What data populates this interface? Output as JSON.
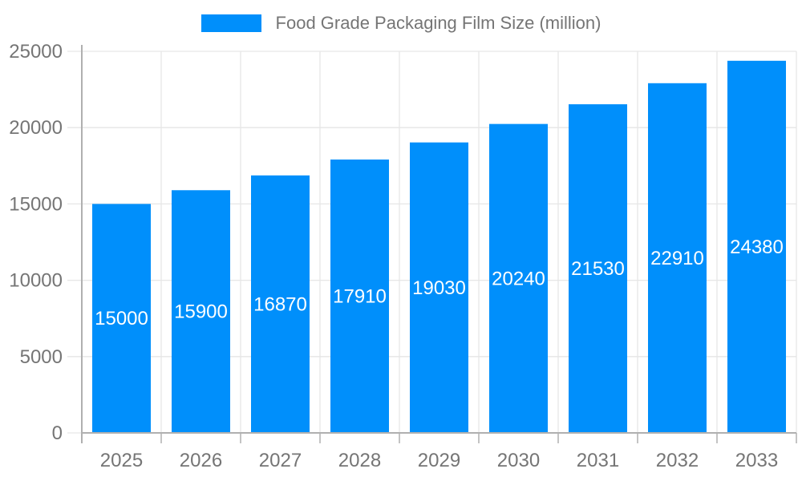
{
  "chart_data": {
    "type": "bar",
    "title": "Food Grade Packaging Film Size (million)",
    "legend_position": "top",
    "categories": [
      "2025",
      "2026",
      "2027",
      "2028",
      "2029",
      "2030",
      "2031",
      "2032",
      "2033"
    ],
    "series": [
      {
        "name": "Food Grade Packaging Film Size (million)",
        "values": [
          15000,
          15900,
          16870,
          17910,
          19030,
          20240,
          21530,
          22910,
          24380
        ]
      }
    ],
    "xlabel": "",
    "ylabel": "",
    "ylim": [
      0,
      25000
    ],
    "yticks": [
      0,
      5000,
      10000,
      15000,
      20000,
      25000
    ],
    "grid": true,
    "value_labels": "inside-center",
    "colors": {
      "bar": "#008FFB",
      "value_label": "#ffffff",
      "axis_text": "#757575",
      "gridline": "#e6e6e6",
      "axis_line": "#b0b0b0"
    }
  }
}
